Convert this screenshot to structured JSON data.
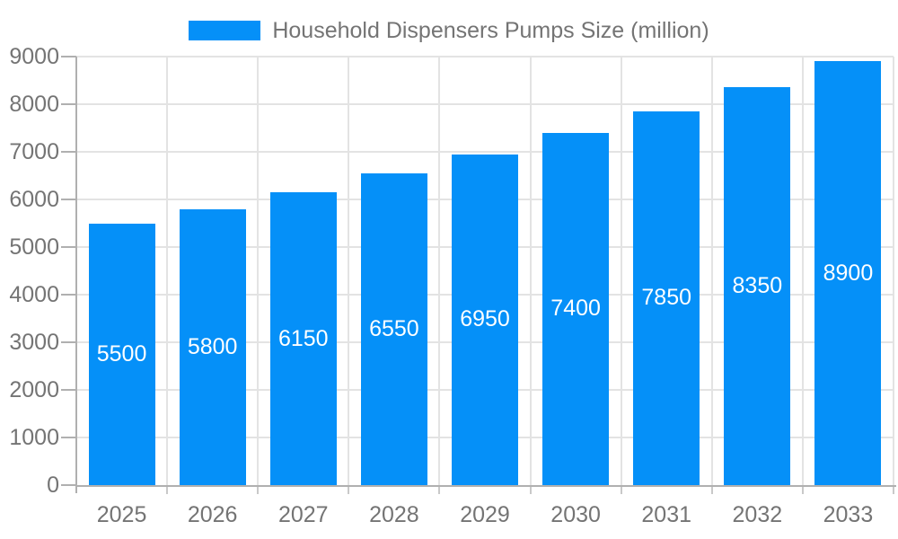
{
  "chart_data": {
    "type": "bar",
    "title": "Household Dispensers Pumps Size (million)",
    "legend": {
      "label": "Household Dispensers Pumps Size (million)",
      "position": "top-center"
    },
    "categories": [
      "2025",
      "2026",
      "2027",
      "2028",
      "2029",
      "2030",
      "2031",
      "2032",
      "2033"
    ],
    "values": [
      5500,
      5800,
      6150,
      6550,
      6950,
      7400,
      7850,
      8350,
      8900
    ],
    "xlabel": "",
    "ylabel": "",
    "ylim": [
      0,
      9000
    ],
    "ytick_step": 1000,
    "ytick_labels": [
      "0",
      "1000",
      "2000",
      "3000",
      "4000",
      "5000",
      "6000",
      "7000",
      "8000",
      "9000"
    ],
    "grid": true,
    "value_labels": "centered-inside-bars",
    "colors": {
      "bar": "#0590f8",
      "bar_value_text": "#ffffff",
      "axis_line": "#b0b0b0",
      "gridline": "#e3e3e3",
      "x_tick": "#c9c9c9",
      "axis_text": "#747474",
      "background": "#ffffff"
    }
  }
}
